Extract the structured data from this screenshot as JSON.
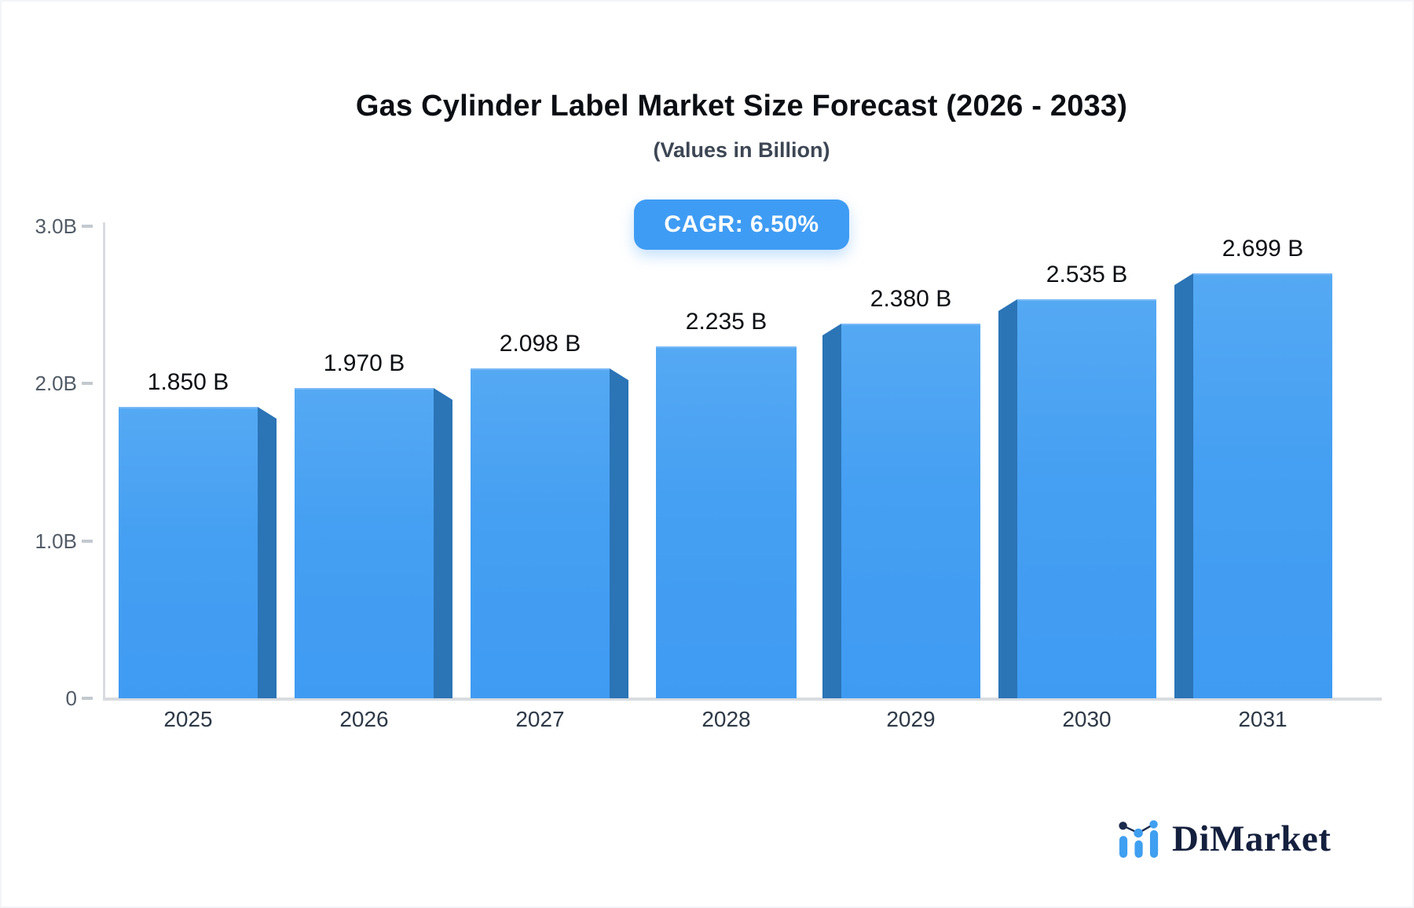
{
  "title": "Gas Cylinder Label Market Size Forecast (2026 - 2033)",
  "subtitle": "(Values in Billion)",
  "badge": {
    "label": "CAGR: 6.50%"
  },
  "chart_data": {
    "type": "bar",
    "categories": [
      "2025",
      "2026",
      "2027",
      "2028",
      "2029",
      "2030",
      "2031"
    ],
    "values": [
      1.85,
      1.97,
      2.098,
      2.235,
      2.38,
      2.535,
      2.699
    ],
    "value_labels": [
      "1.850 B",
      "1.970 B",
      "2.098 B",
      "2.235 B",
      "2.380 B",
      "2.535 B",
      "2.699 B"
    ],
    "title": "Gas Cylinder Label Market Size Forecast (2026 - 2033)",
    "xlabel": "",
    "ylabel": "",
    "ylim": [
      0,
      3
    ],
    "yticks": [
      {
        "label": "3.0B",
        "value": 3
      },
      {
        "label": "2.0B",
        "value": 2
      },
      {
        "label": "1.0B",
        "value": 1
      },
      {
        "label": "0",
        "value": 0
      }
    ],
    "grid": false,
    "legend": false,
    "bar_color": "#459FF2",
    "bar_side_color": "#2B74B6"
  },
  "colors": {
    "accent_blue": "#3F9CF4",
    "bar_face": "#459FF2",
    "bar_side": "#2B74B6",
    "axis_gray": "#D8DCE0",
    "tick_gray": "#C3C9CF",
    "title_text": "#0B0E13",
    "logo_navy": "#15203E",
    "logo_blue": "#3F9FF0"
  },
  "logo": {
    "text": "DiMarket",
    "icon": "bar-chart-trend-icon"
  }
}
